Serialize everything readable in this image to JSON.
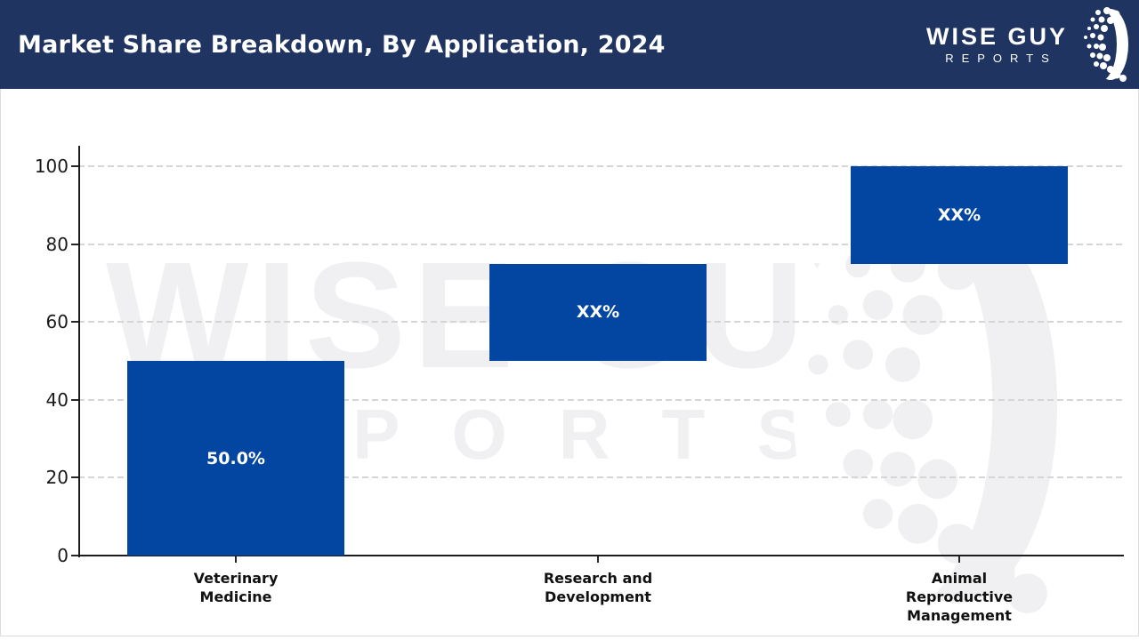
{
  "header": {
    "title": "Market Share Breakdown, By Application, 2024",
    "logo": {
      "line1": "WISE GUY",
      "line2": "REPORTS"
    }
  },
  "watermark": {
    "line1": "WISE GUY",
    "line2": "REPORTS"
  },
  "chart_data": {
    "type": "bar",
    "variant": "floating-segment-waterfall",
    "title": "Market Share Breakdown, By Application, 2024",
    "categories": [
      "Veterinary Medicine",
      "Research and Development",
      "Animal Reproductive Management"
    ],
    "category_label_lines": [
      [
        "Veterinary",
        "Medicine"
      ],
      [
        "Research and",
        "Development"
      ],
      [
        "Animal",
        "Reproductive",
        "Management"
      ]
    ],
    "bars": [
      {
        "category": "Veterinary Medicine",
        "start": 0,
        "end": 50,
        "label": "50.0%"
      },
      {
        "category": "Research and Development",
        "start": 50,
        "end": 75,
        "label": "XX%"
      },
      {
        "category": "Animal Reproductive Management",
        "start": 75,
        "end": 100,
        "label": "XX%"
      }
    ],
    "ylim": [
      0,
      100
    ],
    "yticks": [
      0,
      20,
      40,
      60,
      80,
      100
    ],
    "xlabel": "",
    "ylabel": "",
    "grid": "horizontal-dashed",
    "legend": "none",
    "colors": {
      "bar": "#0346a1",
      "header_bg": "#1f3461",
      "bar_label_text": "#ffffff",
      "gridline": "#d5d5d5",
      "axis": "#1c1c1c",
      "watermark": "#f0f0f2"
    }
  }
}
